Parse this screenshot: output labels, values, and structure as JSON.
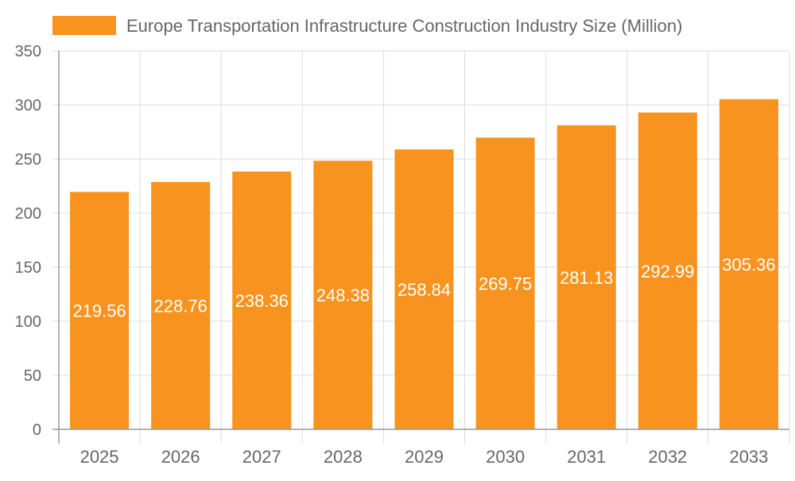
{
  "chart_data": {
    "type": "bar",
    "title": "",
    "xlabel": "",
    "ylabel": "",
    "categories": [
      "2025",
      "2026",
      "2027",
      "2028",
      "2029",
      "2030",
      "2031",
      "2032",
      "2033"
    ],
    "series": [
      {
        "name": "Europe Transportation Infrastructure Construction Industry Size (Million)",
        "values": [
          219.56,
          228.76,
          238.36,
          248.38,
          258.84,
          269.75,
          281.13,
          292.99,
          305.36
        ],
        "color": "#f7931e"
      }
    ],
    "ylim": [
      0,
      350
    ],
    "yticks": [
      0,
      50,
      100,
      150,
      200,
      250,
      300,
      350
    ],
    "grid": true,
    "legend_position": "top",
    "data_labels": true,
    "data_label_color": "#ffffff"
  }
}
